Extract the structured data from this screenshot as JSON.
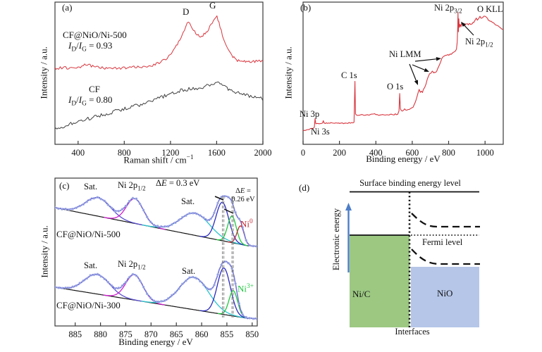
{
  "figure": {
    "background": "#ffffff",
    "border_color": "#3a3a3a"
  },
  "panels": {
    "a": {
      "tag": "(a)",
      "ylabel": "Intensity / a.u.",
      "xlabel": [
        {
          "t": "Raman shift / cm"
        },
        {
          "t": "−1",
          "s": "sup"
        }
      ],
      "sample1": "CF@NiO/Ni-500",
      "ratio1": [
        {
          "t": "I",
          "s": "i"
        },
        {
          "t": "D",
          "s": "sub"
        },
        {
          "t": "/"
        },
        {
          "t": "I",
          "s": "i"
        },
        {
          "t": "G",
          "s": "sub"
        },
        {
          "t": " = 0.93"
        }
      ],
      "sample2": "CF",
      "ratio2": [
        {
          "t": "I",
          "s": "i"
        },
        {
          "t": "D",
          "s": "sub"
        },
        {
          "t": "/"
        },
        {
          "t": "I",
          "s": "i"
        },
        {
          "t": "G",
          "s": "sub"
        },
        {
          "t": " = 0.80"
        }
      ],
      "d_band": "D",
      "g_band": "G"
    },
    "b": {
      "tag": "(b)",
      "ylabel": "Intensity / a.u.",
      "xlabel": "Binding energy / eV",
      "ni3p": "Ni 3p",
      "ni3s": "Ni 3s",
      "c1s": "C 1s",
      "o1s": "O 1s",
      "nilmm": "Ni LMM",
      "ni2p32": [
        {
          "t": "Ni 2p"
        },
        {
          "t": "3/2",
          "s": "sub"
        }
      ],
      "okll": "O KLL",
      "ni2p12": [
        {
          "t": "Ni 2p"
        },
        {
          "t": "1/2",
          "s": "sub"
        }
      ]
    },
    "c": {
      "tag": "(c)",
      "ylabel": "Intensity / a.u.",
      "xlabel": "Binding energy / eV",
      "sat": "Sat.",
      "ni2p12": [
        {
          "t": "Ni 2p"
        },
        {
          "t": "1/2",
          "s": "sub"
        }
      ],
      "delta1": [
        {
          "t": "Δ"
        },
        {
          "t": "E",
          "s": "i"
        },
        {
          "t": " = 0.3 eV"
        }
      ],
      "delta2_line1": [
        {
          "t": "Δ"
        },
        {
          "t": "E",
          "s": "i"
        },
        {
          "t": " ="
        }
      ],
      "delta2_line2": "0.26 eV",
      "ni0": [
        {
          "t": "Ni"
        },
        {
          "t": "0",
          "s": "sup"
        }
      ],
      "ni3plus": [
        {
          "t": "Ni"
        },
        {
          "t": "3+",
          "s": "sup"
        }
      ],
      "sample_top": "CF@NiO/Ni-500",
      "sample_bottom": "CF@NiO/Ni-300"
    },
    "d": {
      "tag": "(d)",
      "surface_level": "Surface binding energy level",
      "fermi_level": "Fermi level",
      "region_left": "Ni/C",
      "region_right": "NiO",
      "xlabel": "Interfaces",
      "ylabel": "Electronic energy"
    }
  },
  "chart_data": [
    {
      "type": "line",
      "panel": "a",
      "title": "Raman spectra",
      "xlabel": "Raman shift / cm-1",
      "ylabel": "Intensity / a.u.",
      "xlim": [
        200,
        2000
      ],
      "xticks": [
        400,
        800,
        1200,
        1600,
        2000
      ],
      "grid": false,
      "series": [
        {
          "name": "CF@NiO/Ni-500",
          "color": "#d8363e",
          "id_ig_ratio": 0.93,
          "d_band_cm": 1355,
          "g_band_cm": 1592,
          "noise": 2.0,
          "points": [
            [
              200,
              0.535
            ],
            [
              260,
              0.537
            ],
            [
              340,
              0.54
            ],
            [
              420,
              0.545
            ],
            [
              480,
              0.562
            ],
            [
              540,
              0.545
            ],
            [
              620,
              0.537
            ],
            [
              700,
              0.535
            ],
            [
              780,
              0.538
            ],
            [
              860,
              0.54
            ],
            [
              940,
              0.545
            ],
            [
              1020,
              0.552
            ],
            [
              1090,
              0.572
            ],
            [
              1160,
              0.6
            ],
            [
              1220,
              0.655
            ],
            [
              1270,
              0.72
            ],
            [
              1320,
              0.8
            ],
            [
              1355,
              0.857
            ],
            [
              1390,
              0.818
            ],
            [
              1430,
              0.77
            ],
            [
              1470,
              0.762
            ],
            [
              1510,
              0.79
            ],
            [
              1550,
              0.84
            ],
            [
              1592,
              0.9
            ],
            [
              1620,
              0.855
            ],
            [
              1650,
              0.77
            ],
            [
              1680,
              0.7
            ],
            [
              1710,
              0.645
            ],
            [
              1740,
              0.615
            ],
            [
              1780,
              0.592
            ],
            [
              1830,
              0.582
            ],
            [
              1880,
              0.58
            ],
            [
              1930,
              0.583
            ],
            [
              2000,
              0.588
            ]
          ]
        },
        {
          "name": "CF",
          "color": "#3f3f3f",
          "id_ig_ratio": 0.8,
          "noise": 2.6,
          "points": [
            [
              200,
              0.102
            ],
            [
              280,
              0.13
            ],
            [
              360,
              0.152
            ],
            [
              440,
              0.17
            ],
            [
              520,
              0.188
            ],
            [
              600,
              0.205
            ],
            [
              680,
              0.222
            ],
            [
              760,
              0.242
            ],
            [
              840,
              0.258
            ],
            [
              920,
              0.275
            ],
            [
              1000,
              0.295
            ],
            [
              1080,
              0.318
            ],
            [
              1160,
              0.342
            ],
            [
              1240,
              0.365
            ],
            [
              1300,
              0.38
            ],
            [
              1360,
              0.39
            ],
            [
              1420,
              0.392
            ],
            [
              1480,
              0.403
            ],
            [
              1540,
              0.42
            ],
            [
              1600,
              0.438
            ],
            [
              1640,
              0.418
            ],
            [
              1690,
              0.392
            ],
            [
              1740,
              0.375
            ],
            [
              1800,
              0.36
            ],
            [
              1860,
              0.345
            ],
            [
              1920,
              0.333
            ],
            [
              2000,
              0.32
            ]
          ]
        }
      ]
    },
    {
      "type": "line",
      "panel": "b",
      "title": "XPS survey spectrum",
      "xlabel": "Binding energy / eV",
      "ylabel": "Intensity / a.u.",
      "xlim": [
        0,
        1100
      ],
      "xticks": [
        0,
        200,
        400,
        600,
        800,
        1000
      ],
      "peaks": {
        "Ni 3p": 66,
        "Ni 3s": 111,
        "C 1s": 285,
        "O 1s": 531,
        "Ni 2p3/2": 855,
        "Ni 2p1/2": 873
      },
      "series": [
        {
          "name": "XPS survey",
          "color": "#d8363e",
          "noise": 0.8,
          "points": [
            [
              0,
              0.094
            ],
            [
              40,
              0.107
            ],
            [
              55,
              0.114
            ],
            [
              62,
              0.119
            ],
            [
              66,
              0.183
            ],
            [
              70,
              0.145
            ],
            [
              80,
              0.144
            ],
            [
              95,
              0.147
            ],
            [
              107,
              0.152
            ],
            [
              111,
              0.17
            ],
            [
              116,
              0.15
            ],
            [
              140,
              0.149
            ],
            [
              180,
              0.149
            ],
            [
              230,
              0.149
            ],
            [
              268,
              0.151
            ],
            [
              280,
              0.158
            ],
            [
              285,
              0.446
            ],
            [
              288,
              0.21
            ],
            [
              293,
              0.206
            ],
            [
              320,
              0.207
            ],
            [
              355,
              0.207
            ],
            [
              393,
              0.213
            ],
            [
              400,
              0.206
            ],
            [
              430,
              0.207
            ],
            [
              465,
              0.208
            ],
            [
              500,
              0.21
            ],
            [
              520,
              0.213
            ],
            [
              527,
              0.238
            ],
            [
              531,
              0.356
            ],
            [
              535,
              0.248
            ],
            [
              545,
              0.235
            ],
            [
              552,
              0.24
            ],
            [
              558,
              0.252
            ],
            [
              565,
              0.24
            ],
            [
              578,
              0.243
            ],
            [
              590,
              0.248
            ],
            [
              605,
              0.262
            ],
            [
              615,
              0.292
            ],
            [
              628,
              0.342
            ],
            [
              638,
              0.386
            ],
            [
              644,
              0.368
            ],
            [
              650,
              0.376
            ],
            [
              656,
              0.368
            ],
            [
              664,
              0.39
            ],
            [
              672,
              0.411
            ],
            [
              680,
              0.445
            ],
            [
              688,
              0.475
            ],
            [
              695,
              0.495
            ],
            [
              703,
              0.499
            ],
            [
              710,
              0.515
            ],
            [
              718,
              0.506
            ],
            [
              726,
              0.503
            ],
            [
              735,
              0.52
            ],
            [
              745,
              0.545
            ],
            [
              755,
              0.575
            ],
            [
              763,
              0.605
            ],
            [
              772,
              0.62
            ],
            [
              782,
              0.625
            ],
            [
              795,
              0.628
            ],
            [
              808,
              0.632
            ],
            [
              820,
              0.638
            ],
            [
              832,
              0.648
            ],
            [
              843,
              0.665
            ],
            [
              847,
              0.72
            ],
            [
              850,
              0.83
            ],
            [
              851.5,
              0.93
            ],
            [
              853.5,
              0.795
            ],
            [
              856,
              0.885
            ],
            [
              858,
              0.835
            ],
            [
              860,
              0.82
            ],
            [
              863,
              0.845
            ],
            [
              868,
              0.828
            ],
            [
              872,
              0.855
            ],
            [
              877,
              0.838
            ],
            [
              885,
              0.833
            ],
            [
              893,
              0.843
            ],
            [
              900,
              0.85
            ],
            [
              908,
              0.84
            ],
            [
              915,
              0.853
            ],
            [
              922,
              0.845
            ],
            [
              930,
              0.85
            ],
            [
              938,
              0.86
            ],
            [
              945,
              0.873
            ],
            [
              952,
              0.884
            ],
            [
              958,
              0.874
            ],
            [
              965,
              0.888
            ],
            [
              972,
              0.898
            ],
            [
              980,
              0.884
            ],
            [
              988,
              0.894
            ],
            [
              996,
              0.903
            ],
            [
              1003,
              0.897
            ],
            [
              1010,
              0.888
            ],
            [
              1018,
              0.877
            ],
            [
              1028,
              0.867
            ],
            [
              1040,
              0.857
            ],
            [
              1055,
              0.844
            ],
            [
              1070,
              0.831
            ],
            [
              1085,
              0.819
            ],
            [
              1100,
              0.806
            ]
          ]
        }
      ]
    },
    {
      "type": "line",
      "panel": "c",
      "title": "Ni 2p XPS with fitted components",
      "xlabel": "Binding energy / eV",
      "ylabel": "Intensity / a.u.",
      "xlim": [
        889,
        849
      ],
      "x_reversed": true,
      "xticks": [
        885,
        880,
        875,
        870,
        865,
        860,
        855,
        850
      ],
      "envelope_color": "#7577d6",
      "marker_color": "#a8b6e8",
      "baseline_color": "#141414",
      "dashed_guides": [
        855.9,
        855.6,
        854.0,
        853.74
      ],
      "delta_E_eV": [
        0.3,
        0.26
      ],
      "spectra": [
        {
          "name": "CF@NiO/Ni-500",
          "baseline": [
            [
              889,
              0.8
            ],
            [
              851,
              0.543
            ],
            [
              849,
              0.538
            ]
          ],
          "components": [
            {
              "label": "Sat.",
              "center": 880.5,
              "sigma": 2.5,
              "amp": 0.125,
              "color": "#5a4fd0"
            },
            {
              "label": "Ni 2p1/2",
              "center": 873.2,
              "sigma": 1.7,
              "amp": 0.167,
              "color": "#cf1fcf"
            },
            {
              "label": "Sat.",
              "center": 861.3,
              "sigma": 2.9,
              "amp": 0.15,
              "color": "#2bc4cf"
            },
            {
              "label": "Ni 2p3/2",
              "center": 855.9,
              "sigma": 1.25,
              "amp": 0.26,
              "color": "#2b2bbf"
            },
            {
              "label": "Ni3+",
              "center": 854.0,
              "sigma": 0.85,
              "amp": 0.18,
              "color": "#1fc93f"
            },
            {
              "label": "Ni0",
              "center": 852.3,
              "sigma": 0.7,
              "amp": 0.125,
              "color": "#c22a33"
            }
          ]
        },
        {
          "name": "CF@NiO/Ni-300",
          "baseline": [
            [
              889,
              0.262
            ],
            [
              851,
              0.052
            ],
            [
              849,
              0.05
            ]
          ],
          "components": [
            {
              "label": "Sat.",
              "center": 880.7,
              "sigma": 2.5,
              "amp": 0.133,
              "color": "#5a4fd0"
            },
            {
              "label": "Ni 2p1/2",
              "center": 873.3,
              "sigma": 1.7,
              "amp": 0.171,
              "color": "#cf1fcf"
            },
            {
              "label": "Sat.",
              "center": 861.5,
              "sigma": 2.9,
              "amp": 0.219,
              "color": "#2bc4cf"
            },
            {
              "label": "Ni 2p3/2",
              "center": 855.6,
              "sigma": 1.3,
              "amp": 0.314,
              "color": "#2b2bbf"
            },
            {
              "label": "Ni3+",
              "center": 853.74,
              "sigma": 0.85,
              "amp": 0.171,
              "color": "#1fc93f"
            }
          ]
        }
      ]
    },
    {
      "type": "diagram",
      "panel": "d",
      "title": "Band alignment at Ni/C - NiO interface",
      "regions": [
        {
          "label": "Ni/C",
          "fill": "#9cc882"
        },
        {
          "label": "NiO",
          "fill": "#b5c6e8"
        }
      ],
      "levels": [
        "Surface binding energy level",
        "Fermi level"
      ],
      "arrow_color": "#4d7ec8",
      "line_color": "#111111"
    }
  ]
}
